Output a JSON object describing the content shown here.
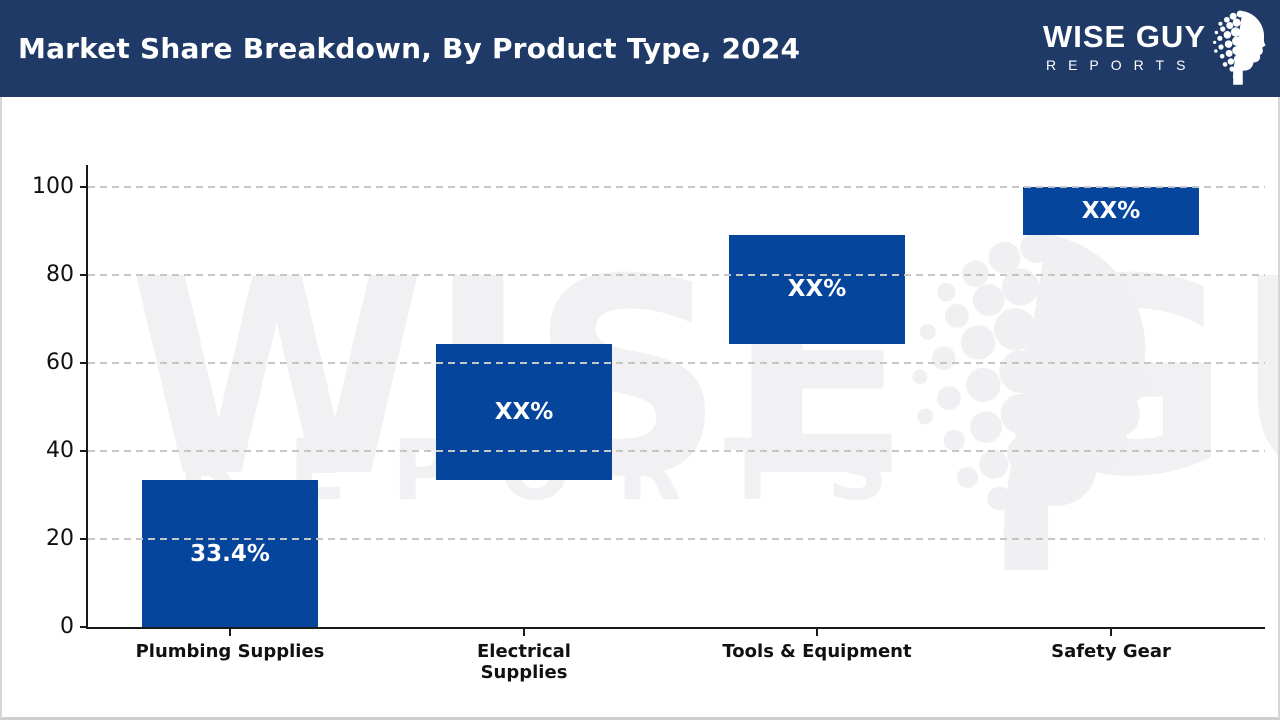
{
  "header": {
    "title": "Market Share Breakdown, By Product Type, 2024",
    "logo": {
      "wordmark": "WISE GUY",
      "subtext": "REPORTS"
    }
  },
  "watermark": {
    "wordmark": "WISE GUY",
    "subtext": "REPORTS"
  },
  "colors": {
    "header_background": "#1f3a67",
    "bar_blue": "#05459c",
    "value_label": "#ffffff",
    "axis": "#1a1a1a",
    "gridline": "#c6c6c6",
    "watermark": "#f1f1f4"
  },
  "chart_data": {
    "type": "bar",
    "subtype": "waterfall",
    "title": "Market Share Breakdown, By Product Type, 2024",
    "categories": [
      "Plumbing Supplies",
      "Electrical Supplies",
      "Tools & Equipment",
      "Safety Gear"
    ],
    "tick_labels": [
      "Plumbing Supplies",
      "Electrical\nSupplies",
      "Tools & Equipment",
      "Safety Gear"
    ],
    "series": [
      {
        "segments": [
          {
            "category": "Plumbing Supplies",
            "start": 0,
            "end": 33.4,
            "value_label": "33.4%"
          },
          {
            "category": "Electrical Supplies",
            "start": 33.4,
            "end": 64.3,
            "value_label": "XX%"
          },
          {
            "category": "Tools & Equipment",
            "start": 64.3,
            "end": 89.2,
            "value_label": "XX%"
          },
          {
            "category": "Safety Gear",
            "start": 89.2,
            "end": 100,
            "value_label": "XX%"
          }
        ]
      }
    ],
    "xlabel": "",
    "ylabel": "",
    "yticks": [
      0,
      20,
      40,
      60,
      80,
      100
    ],
    "ylim": [
      0,
      105
    ],
    "grid": true,
    "grid_axis": "y",
    "grid_style": "dashed",
    "legend": false,
    "bar_color": "#05459c",
    "value_label_color": "#ffffff"
  }
}
